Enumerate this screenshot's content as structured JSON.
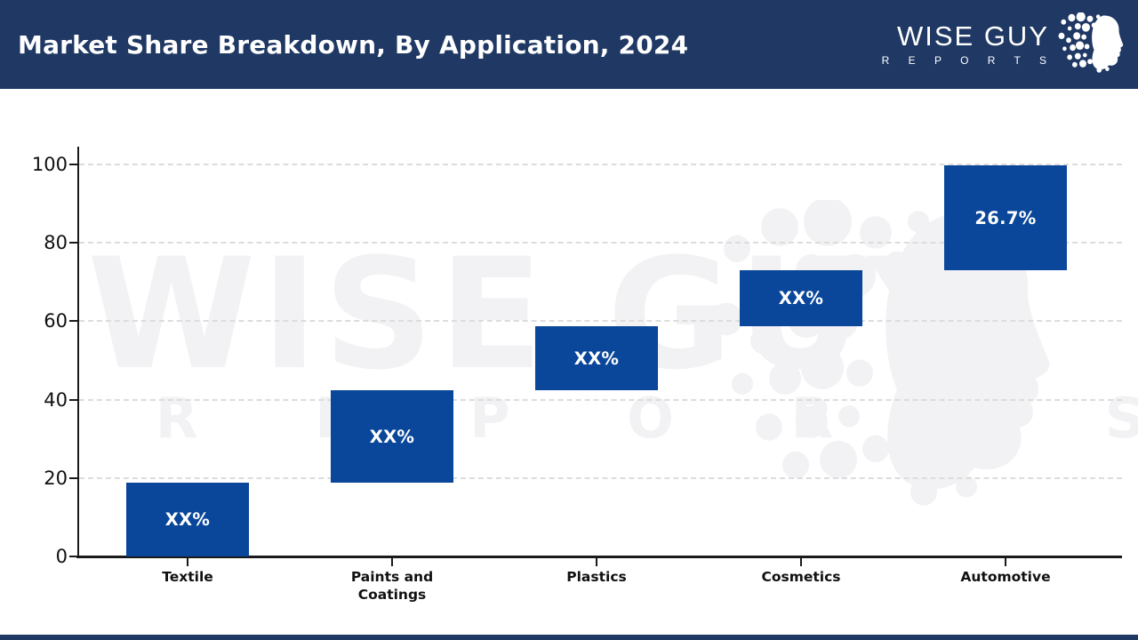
{
  "header": {
    "title": "Market Share Breakdown, By Application, 2024",
    "bg_color": "#1f3864",
    "logo": {
      "line1": "WISE GUY",
      "line2": "R E P O R T S",
      "icon": "dotted-face-profile-icon"
    }
  },
  "watermark": {
    "line1": "WISE GUY",
    "line2": "R E P O R T S",
    "icon": "dotted-face-profile-icon"
  },
  "footer": {
    "bg_color": "#1f3864"
  },
  "chart_data": {
    "type": "bar",
    "subtype": "waterfall-floating-bars",
    "title": "Market Share Breakdown, By Application, 2024",
    "xlabel": "",
    "ylabel": "",
    "categories": [
      "Textile",
      "Paints and Coatings",
      "Plastics",
      "Cosmetics",
      "Automotive"
    ],
    "segments": [
      {
        "category": "Textile",
        "start": 0,
        "end": 18.8,
        "value": 18.8,
        "label": "XX%"
      },
      {
        "category": "Paints and Coatings",
        "start": 18.8,
        "end": 42.4,
        "value": 23.6,
        "label": "XX%"
      },
      {
        "category": "Plastics",
        "start": 42.4,
        "end": 58.7,
        "value": 16.3,
        "label": "XX%"
      },
      {
        "category": "Cosmetics",
        "start": 58.7,
        "end": 73.0,
        "value": 14.3,
        "label": "XX%"
      },
      {
        "category": "Automotive",
        "start": 73.0,
        "end": 99.7,
        "value": 26.7,
        "label": "26.7%"
      }
    ],
    "y_ticks": [
      0,
      20,
      40,
      60,
      80,
      100
    ],
    "ylim": [
      0,
      104.5
    ],
    "grid": "horizontal dashed",
    "legend": "none",
    "bar_color": "#0a4699",
    "bar_label_color": "#ffffff",
    "axis_color": "#1a1a1a",
    "gridline_color": "#dcdcdc"
  }
}
